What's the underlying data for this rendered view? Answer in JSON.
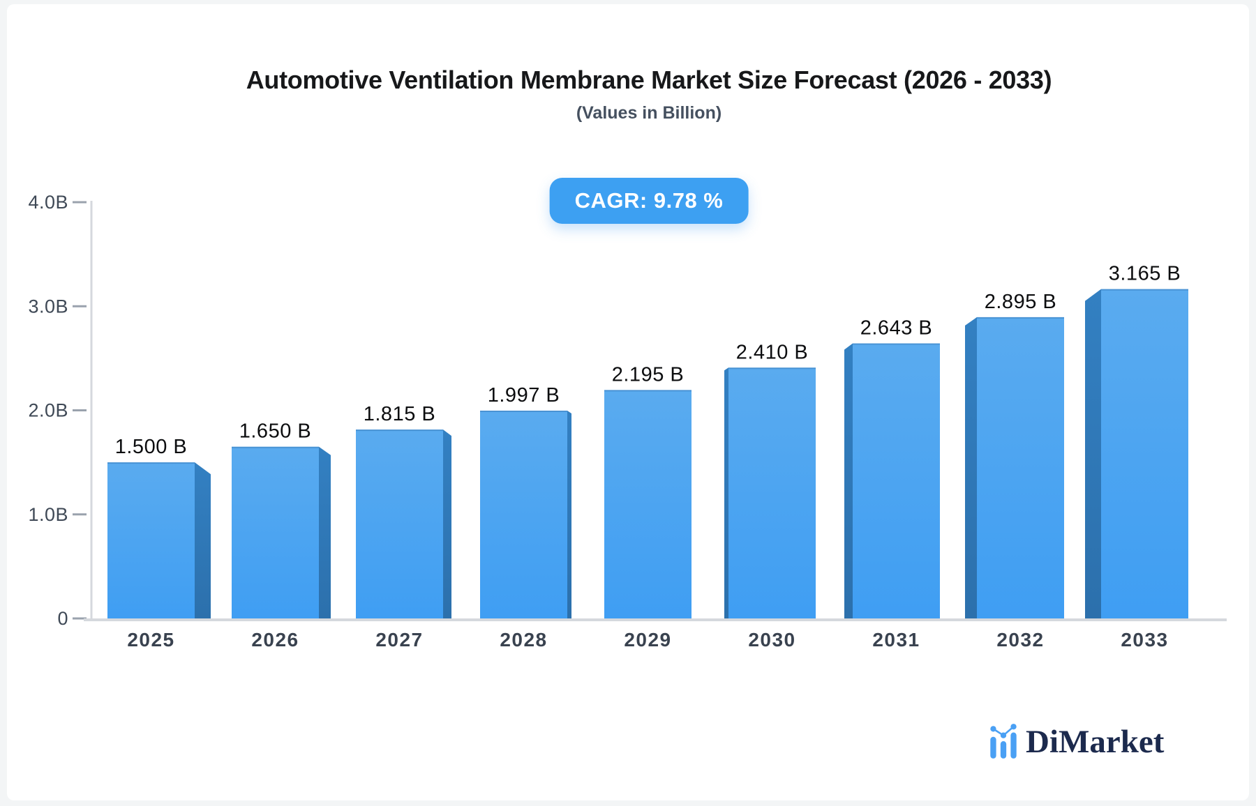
{
  "header": {
    "title": "Automotive Ventilation Membrane Market Size Forecast (2026 - 2033)",
    "subtitle": "(Values in Billion)",
    "cagr_badge": "CAGR: 9.78 %"
  },
  "logo": {
    "brand": "DiMarket",
    "icon": "mini-bar-chart-icon"
  },
  "colors": {
    "accent_blue": "#3da0f2",
    "bar_front_top": "#5aabef",
    "bar_front_bottom": "#3f9ef3",
    "bar_side_top": "#3380c2",
    "bar_side_bottom": "#2c70ac",
    "bar_top_edge": "#3d7fbe",
    "axis_line": "#d5d8dd",
    "tick_mark": "#9aa2ad",
    "y_label": "#3f4956",
    "x_label": "#39424f",
    "value_label": "#0c0d0f",
    "logo_navy": "#1c2a4d",
    "logo_icon_blue": "#4aa0f4"
  },
  "chart_data": {
    "type": "bar",
    "title": "Automotive Ventilation Membrane Market Size Forecast (2026 - 2033)",
    "subtitle": "(Values in Billion)",
    "cagr": "9.78 %",
    "categories": [
      "2025",
      "2026",
      "2027",
      "2028",
      "2029",
      "2030",
      "2031",
      "2032",
      "2033"
    ],
    "values": [
      1.5,
      1.65,
      1.815,
      1.997,
      2.195,
      2.41,
      2.643,
      2.895,
      3.165
    ],
    "value_labels": [
      "1.500 B",
      "1.650 B",
      "1.815 B",
      "1.997 B",
      "2.195 B",
      "2.410 B",
      "2.643 B",
      "2.895 B",
      "3.165 B"
    ],
    "xlabel": "",
    "ylabel": "",
    "ylim": [
      0,
      4
    ],
    "yticks": [
      {
        "v": 0,
        "label": "0"
      },
      {
        "v": 1,
        "label": "1.0B"
      },
      {
        "v": 2,
        "label": "2.0B"
      },
      {
        "v": 3,
        "label": "3.0B"
      },
      {
        "v": 4,
        "label": "4.0B"
      }
    ],
    "grid": false,
    "legend": false
  }
}
